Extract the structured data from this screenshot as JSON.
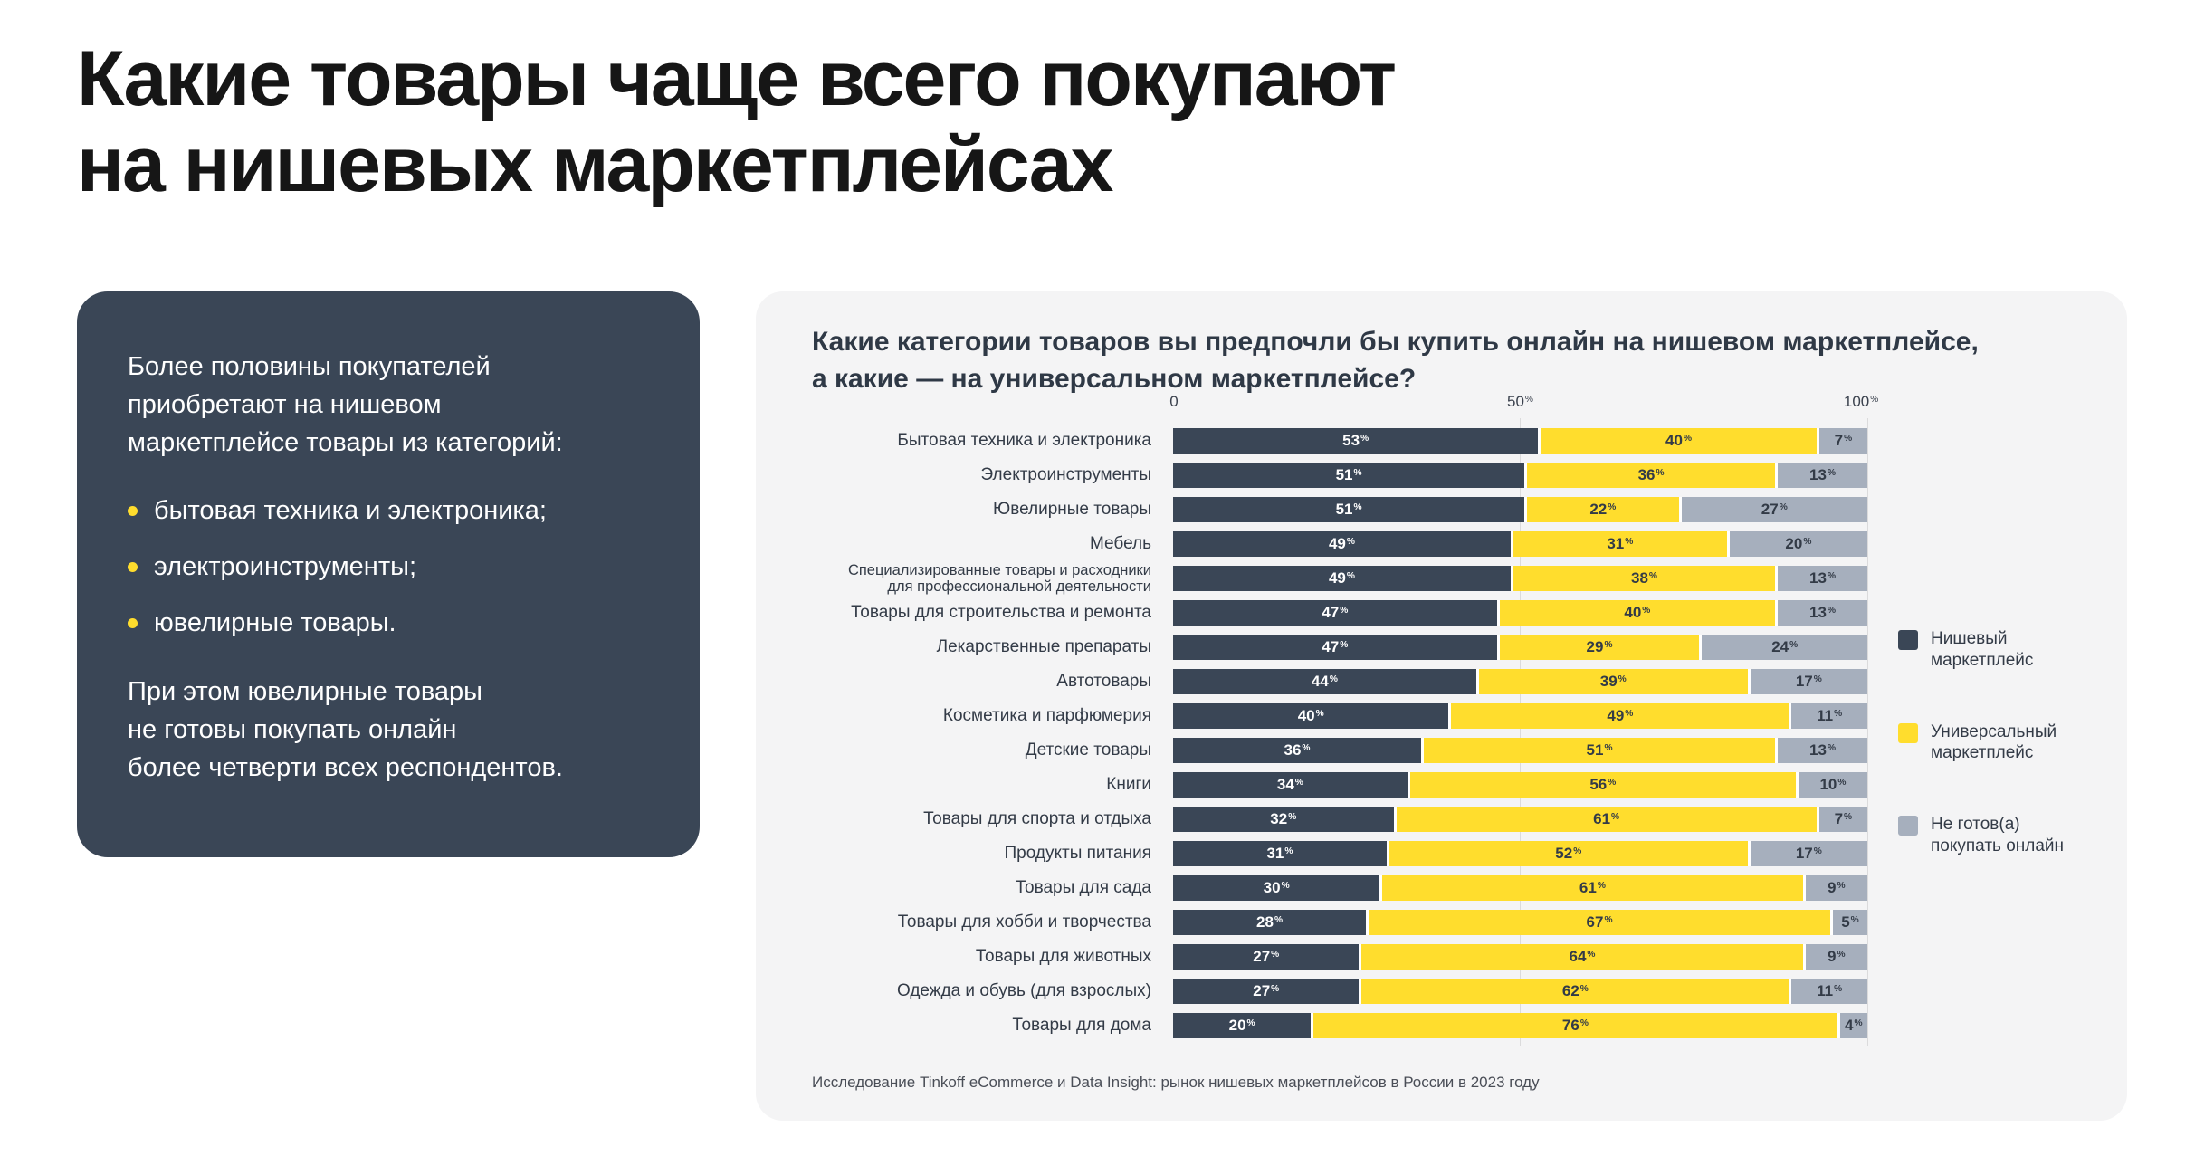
{
  "page_title": {
    "line1": "Какие товары чаще всего покупают",
    "line2": "на нишевых маркетплейсах"
  },
  "callout": {
    "intro": "Более половины покупателей\nприобретают на нишевом\nмаркетплейсе товары из категорий:",
    "bullets": [
      "бытовая техника и электроника;",
      "электроинструменты;",
      "ювелирные товары."
    ],
    "outro": "При этом ювелирные товары\nне готовы покупать онлайн\nболее четверти всех респондентов."
  },
  "chart_panel": {
    "question_line1": "Какие категории товаров вы предпочли бы купить онлайн на нишевом маркетплейсе,",
    "question_line2": "а какие — на универсальном маркетплейсе?",
    "source": "Исследование Tinkoff eCommerce и Data Insight: рынок нишевых маркетплейсов в России в 2023 году"
  },
  "colors": {
    "niche": "#3A4656",
    "universal": "#FFDD2D",
    "not_ready": "#A6AFBD",
    "card_dark": "#3A4656",
    "card_light": "#F4F4F5",
    "accent_yellow": "#FFDD2D"
  },
  "chart_data": {
    "type": "bar",
    "orientation": "horizontal",
    "stacked": true,
    "unit": "%",
    "xlim": [
      0,
      100
    ],
    "x_axis_ticks": [
      "0",
      "50%",
      "100%"
    ],
    "grid": "50% and 100% vertical lines",
    "legend_position": "right",
    "categories": [
      "Бытовая техника и электроника",
      "Электроинструменты",
      "Ювелирные товары",
      "Мебель",
      "Специализированные товары и расходники\nдля профессиональной деятельности",
      "Товары для строительства и ремонта",
      "Лекарственные препараты",
      "Автотовары",
      "Косметика и парфюмерия",
      "Детские товары",
      "Книги",
      "Товары для спорта и отдыха",
      "Продукты питания",
      "Товары для сада",
      "Товары для хобби и творчества",
      "Товары для животных",
      "Одежда и обувь (для взрослых)",
      "Товары для дома"
    ],
    "series": [
      {
        "key": "niche",
        "name": "Нишевый маркетплейс",
        "color": "#3A4656",
        "values": [
          53,
          51,
          51,
          49,
          49,
          47,
          47,
          44,
          40,
          36,
          34,
          32,
          31,
          30,
          28,
          27,
          27,
          20
        ]
      },
      {
        "key": "universal",
        "name": "Универсальный маркетплейс",
        "color": "#FFDD2D",
        "values": [
          40,
          36,
          22,
          31,
          38,
          40,
          29,
          39,
          49,
          51,
          56,
          61,
          52,
          61,
          67,
          64,
          62,
          76
        ]
      },
      {
        "key": "not-ready",
        "name": "Не готов(а) покупать онлайн",
        "color": "#A6AFBD",
        "values": [
          7,
          13,
          27,
          20,
          13,
          13,
          24,
          17,
          11,
          13,
          10,
          7,
          17,
          9,
          5,
          9,
          11,
          4
        ]
      }
    ]
  },
  "legend": {
    "items": [
      {
        "label": "Нишевый\nмаркетплейс",
        "color": "#3A4656"
      },
      {
        "label": "Универсальный\nмаркетплейс",
        "color": "#FFDD2D"
      },
      {
        "label": "Не готов(а)\nпокупать онлайн",
        "color": "#A6AFBD"
      }
    ]
  }
}
